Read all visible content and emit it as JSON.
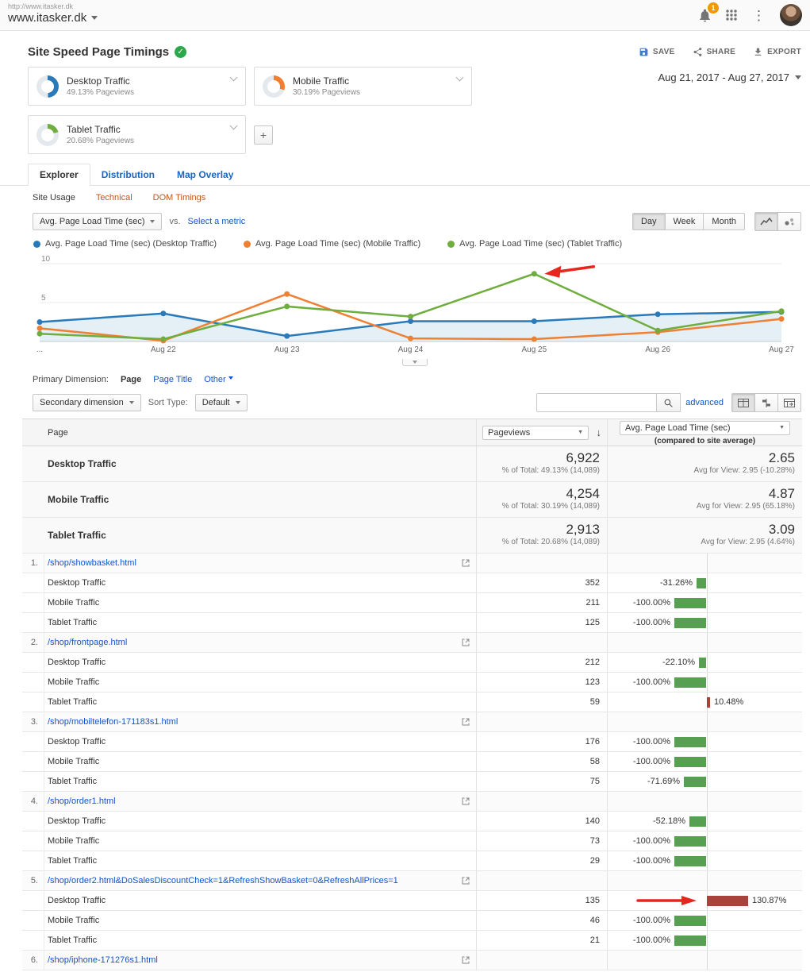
{
  "topbar": {
    "url": "http://www.itasker.dk",
    "account": "www.itasker.dk",
    "notification_badge": "1"
  },
  "header": {
    "title": "Site Speed Page Timings",
    "save": "SAVE",
    "share": "SHARE",
    "export": "EXPORT"
  },
  "date_range": "Aug 21, 2017 - Aug 27, 2017",
  "add_segment": "+",
  "segments": [
    {
      "name": "Desktop Traffic",
      "detail": "49.13% Pageviews",
      "color": "#2a7ab9",
      "percent": 49.13
    },
    {
      "name": "Mobile Traffic",
      "detail": "30.19% Pageviews",
      "color": "#ef8033",
      "percent": 30.19
    },
    {
      "name": "Tablet Traffic",
      "detail": "20.68% Pageviews",
      "color": "#6fae3e",
      "percent": 20.68
    }
  ],
  "tabs": {
    "explorer": "Explorer",
    "distribution": "Distribution",
    "map_overlay": "Map Overlay"
  },
  "subtabs": {
    "site_usage": "Site Usage",
    "technical": "Technical",
    "dom_timings": "DOM Timings"
  },
  "metric_bar": {
    "metric_select": "Avg. Page Load Time (sec)",
    "vs": "vs.",
    "select_metric": "Select a metric",
    "day": "Day",
    "week": "Week",
    "month": "Month"
  },
  "legend": [
    {
      "label": "Avg. Page Load Time (sec) (Desktop Traffic)",
      "color": "#2a7ab9"
    },
    {
      "label": "Avg. Page Load Time (sec) (Mobile Traffic)",
      "color": "#ef8033"
    },
    {
      "label": "Avg. Page Load Time (sec) (Tablet Traffic)",
      "color": "#6fae3e"
    }
  ],
  "chart_data": {
    "type": "line",
    "x": [
      "...",
      "Aug 22",
      "Aug 23",
      "Aug 24",
      "Aug 25",
      "Aug 26",
      "Aug 27"
    ],
    "ylim": [
      0,
      10
    ],
    "yticks": [
      5,
      10
    ],
    "grid": true,
    "legend_position": "top",
    "series": [
      {
        "name": "Avg. Page Load Time (sec) (Desktop Traffic)",
        "color": "#2a7ab9",
        "area": true,
        "values": [
          2.5,
          3.6,
          0.7,
          2.6,
          2.6,
          3.5,
          3.8
        ]
      },
      {
        "name": "Avg. Page Load Time (sec) (Mobile Traffic)",
        "color": "#ef8033",
        "area": false,
        "values": [
          1.7,
          0.1,
          6.1,
          0.4,
          0.3,
          1.2,
          2.9
        ]
      },
      {
        "name": "Avg. Page Load Time (sec) (Tablet Traffic)",
        "color": "#6fae3e",
        "area": false,
        "values": [
          1.0,
          0.3,
          4.5,
          3.2,
          8.7,
          1.4,
          3.9
        ]
      }
    ],
    "annotation": "red arrow pointing at Tablet Traffic peak on Aug 25"
  },
  "primary_dimension": {
    "label": "Primary Dimension:",
    "page": "Page",
    "page_title": "Page Title",
    "other": "Other"
  },
  "toolbar": {
    "secondary_dimension": "Secondary dimension",
    "sort_type_label": "Sort Type:",
    "sort_type_value": "Default",
    "search_value": "",
    "advanced": "advanced"
  },
  "table": {
    "header": {
      "page": "Page",
      "pageviews": "Pageviews",
      "metric": "Avg. Page Load Time (sec)",
      "metric_note": "(compared to site average)"
    },
    "summary": [
      {
        "name": "Desktop Traffic",
        "pageviews": "6,922",
        "pageviews_note": "% of Total: 49.13% (14,089)",
        "value": "2.65",
        "value_note": "Avg for View: 2.95 (-10.28%)"
      },
      {
        "name": "Mobile Traffic",
        "pageviews": "4,254",
        "pageviews_note": "% of Total: 30.19% (14,089)",
        "value": "4.87",
        "value_note": "Avg for View: 2.95 (65.18%)"
      },
      {
        "name": "Tablet Traffic",
        "pageviews": "2,913",
        "pageviews_note": "% of Total: 20.68% (14,089)",
        "value": "3.09",
        "value_note": "Avg for View: 2.95 (4.64%)"
      }
    ],
    "rows": [
      {
        "index": "1.",
        "page": "/shop/showbasket.html",
        "segments": [
          {
            "name": "Desktop Traffic",
            "pageviews": "352",
            "delta_label": "-31.26%",
            "delta": -31.26
          },
          {
            "name": "Mobile Traffic",
            "pageviews": "211",
            "delta_label": "-100.00%",
            "delta": -100
          },
          {
            "name": "Tablet Traffic",
            "pageviews": "125",
            "delta_label": "-100.00%",
            "delta": -100
          }
        ]
      },
      {
        "index": "2.",
        "page": "/shop/frontpage.html",
        "segments": [
          {
            "name": "Desktop Traffic",
            "pageviews": "212",
            "delta_label": "-22.10%",
            "delta": -22.1
          },
          {
            "name": "Mobile Traffic",
            "pageviews": "123",
            "delta_label": "-100.00%",
            "delta": -100
          },
          {
            "name": "Tablet Traffic",
            "pageviews": "59",
            "delta_label": "10.48%",
            "delta": 10.48
          }
        ]
      },
      {
        "index": "3.",
        "page": "/shop/mobiltelefon-171183s1.html",
        "segments": [
          {
            "name": "Desktop Traffic",
            "pageviews": "176",
            "delta_label": "-100.00%",
            "delta": -100
          },
          {
            "name": "Mobile Traffic",
            "pageviews": "58",
            "delta_label": "-100.00%",
            "delta": -100
          },
          {
            "name": "Tablet Traffic",
            "pageviews": "75",
            "delta_label": "-71.69%",
            "delta": -71.69
          }
        ]
      },
      {
        "index": "4.",
        "page": "/shop/order1.html",
        "segments": [
          {
            "name": "Desktop Traffic",
            "pageviews": "140",
            "delta_label": "-52.18%",
            "delta": -52.18
          },
          {
            "name": "Mobile Traffic",
            "pageviews": "73",
            "delta_label": "-100.00%",
            "delta": -100
          },
          {
            "name": "Tablet Traffic",
            "pageviews": "29",
            "delta_label": "-100.00%",
            "delta": -100
          }
        ]
      },
      {
        "index": "5.",
        "page": "/shop/order2.html&DoSalesDiscountCheck=1&RefreshShowBasket=0&RefreshAllPrices=1",
        "segments": [
          {
            "name": "Desktop Traffic",
            "pageviews": "135",
            "delta_label": "130.87%",
            "delta": 130.87,
            "annotated": true
          },
          {
            "name": "Mobile Traffic",
            "pageviews": "46",
            "delta_label": "-100.00%",
            "delta": -100
          },
          {
            "name": "Tablet Traffic",
            "pageviews": "21",
            "delta_label": "-100.00%",
            "delta": -100
          }
        ]
      },
      {
        "index": "6.",
        "page": "/shop/iphone-171276s1.html",
        "segments": []
      }
    ]
  },
  "colors": {
    "negative_bar": "#57a052",
    "positive_bar": "#a8423a",
    "link": "#1155cc",
    "annotation_arrow": "#e8261d"
  }
}
